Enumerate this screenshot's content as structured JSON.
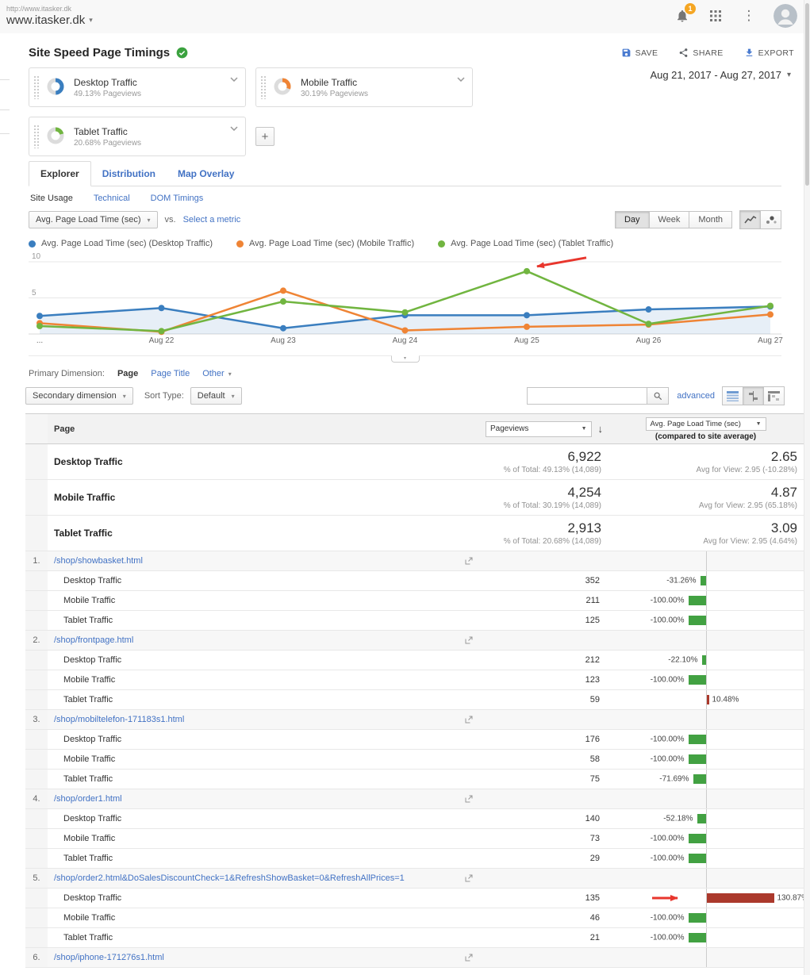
{
  "topbar": {
    "url": "http://www.itasker.dk",
    "site_name": "www.itasker.dk",
    "notification_count": "1"
  },
  "report": {
    "title": "Site Speed Page Timings",
    "save_label": "SAVE",
    "share_label": "SHARE",
    "export_label": "EXPORT",
    "date_range": "Aug 21, 2017 - Aug 27, 2017"
  },
  "segments": [
    {
      "name": "Desktop Traffic",
      "detail": "49.13% Pageviews",
      "pct": 49.13,
      "color": "#3a7ebf"
    },
    {
      "name": "Mobile Traffic",
      "detail": "30.19% Pageviews",
      "pct": 30.19,
      "color": "#ef8435"
    },
    {
      "name": "Tablet Traffic",
      "detail": "20.68% Pageviews",
      "pct": 20.68,
      "color": "#71b540"
    }
  ],
  "tabs": [
    {
      "label": "Explorer",
      "active": true
    },
    {
      "label": "Distribution",
      "active": false
    },
    {
      "label": "Map Overlay",
      "active": false
    }
  ],
  "subtabs": [
    {
      "label": "Site Usage",
      "active": true
    },
    {
      "label": "Technical",
      "active": false
    },
    {
      "label": "DOM Timings",
      "active": false
    }
  ],
  "metric_bar": {
    "metric_dropdown": "Avg. Page Load Time (sec)",
    "vs_label": "vs.",
    "select_metric": "Select a metric",
    "granularity": [
      {
        "label": "Day",
        "active": true
      },
      {
        "label": "Week",
        "active": false
      },
      {
        "label": "Month",
        "active": false
      }
    ]
  },
  "legend": [
    {
      "label": "Avg. Page Load Time (sec) (Desktop Traffic)",
      "color": "#3a7ebf"
    },
    {
      "label": "Avg. Page Load Time (sec) (Mobile Traffic)",
      "color": "#ef8435"
    },
    {
      "label": "Avg. Page Load Time (sec) (Tablet Traffic)",
      "color": "#71b540"
    }
  ],
  "chart_data": {
    "type": "line",
    "x_labels": [
      "...",
      "Aug 22",
      "Aug 23",
      "Aug 24",
      "Aug 25",
      "Aug 26",
      "Aug 27"
    ],
    "y_ticks": [
      5,
      10
    ],
    "y_max": 10,
    "grid": true,
    "legend_position": "top",
    "series": [
      {
        "name": "Avg. Page Load Time (sec) (Desktop Traffic)",
        "color": "#3a7ebf",
        "area": true,
        "values": [
          2.5,
          3.6,
          0.8,
          2.6,
          2.6,
          3.4,
          3.8
        ]
      },
      {
        "name": "Avg. Page Load Time (sec) (Mobile Traffic)",
        "color": "#ef8435",
        "area": false,
        "values": [
          1.5,
          0.3,
          6.0,
          0.5,
          1.0,
          1.3,
          2.7
        ]
      },
      {
        "name": "Avg. Page Load Time (sec) (Tablet Traffic)",
        "color": "#71b540",
        "area": false,
        "values": [
          1.1,
          0.4,
          4.5,
          3.0,
          8.7,
          1.4,
          3.9
        ]
      }
    ],
    "annotation": {
      "type": "arrow",
      "series": 2,
      "point": 4,
      "color": "#e8362d"
    }
  },
  "dimension_bar": {
    "label": "Primary Dimension:",
    "options": [
      {
        "label": "Page",
        "active": true,
        "caret": false
      },
      {
        "label": "Page Title",
        "active": false,
        "caret": false
      },
      {
        "label": "Other",
        "active": false,
        "caret": true
      }
    ]
  },
  "toolbar": {
    "secondary_dimension": "Secondary dimension",
    "sort_type_label": "Sort Type:",
    "sort_type_value": "Default",
    "search_value": "",
    "advanced_label": "advanced"
  },
  "table": {
    "page_col": "Page",
    "pageviews_col": "Pageviews",
    "avg_col": "Avg. Page Load Time (sec)",
    "avg_col_sub": "(compared to site average)",
    "summary_rows": [
      {
        "name": "Desktop Traffic",
        "pageviews": "6,922",
        "pageviews_sub": "% of Total: 49.13% (14,089)",
        "avg": "2.65",
        "avg_sub": "Avg for View: 2.95 (-10.28%)"
      },
      {
        "name": "Mobile Traffic",
        "pageviews": "4,254",
        "pageviews_sub": "% of Total: 30.19% (14,089)",
        "avg": "4.87",
        "avg_sub": "Avg for View: 2.95 (65.18%)"
      },
      {
        "name": "Tablet Traffic",
        "pageviews": "2,913",
        "pageviews_sub": "% of Total: 20.68% (14,089)",
        "avg": "3.09",
        "avg_sub": "Avg for View: 2.95 (4.64%)"
      }
    ],
    "row_groups": [
      {
        "index": "1.",
        "url": "/shop/showbasket.html",
        "segments": [
          {
            "name": "Desktop Traffic",
            "pageviews": "352",
            "delta_label": "-31.26%",
            "delta": -31.26,
            "arrow": false
          },
          {
            "name": "Mobile Traffic",
            "pageviews": "211",
            "delta_label": "-100.00%",
            "delta": -100,
            "arrow": false
          },
          {
            "name": "Tablet Traffic",
            "pageviews": "125",
            "delta_label": "-100.00%",
            "delta": -100,
            "arrow": false
          }
        ]
      },
      {
        "index": "2.",
        "url": "/shop/frontpage.html",
        "segments": [
          {
            "name": "Desktop Traffic",
            "pageviews": "212",
            "delta_label": "-22.10%",
            "delta": -22.1,
            "arrow": false
          },
          {
            "name": "Mobile Traffic",
            "pageviews": "123",
            "delta_label": "-100.00%",
            "delta": -100,
            "arrow": false
          },
          {
            "name": "Tablet Traffic",
            "pageviews": "59",
            "delta_label": "10.48%",
            "delta": 10.48,
            "arrow": false
          }
        ]
      },
      {
        "index": "3.",
        "url": "/shop/mobiltelefon-171183s1.html",
        "segments": [
          {
            "name": "Desktop Traffic",
            "pageviews": "176",
            "delta_label": "-100.00%",
            "delta": -100,
            "arrow": false
          },
          {
            "name": "Mobile Traffic",
            "pageviews": "58",
            "delta_label": "-100.00%",
            "delta": -100,
            "arrow": false
          },
          {
            "name": "Tablet Traffic",
            "pageviews": "75",
            "delta_label": "-71.69%",
            "delta": -71.69,
            "arrow": false
          }
        ]
      },
      {
        "index": "4.",
        "url": "/shop/order1.html",
        "segments": [
          {
            "name": "Desktop Traffic",
            "pageviews": "140",
            "delta_label": "-52.18%",
            "delta": -52.18,
            "arrow": false
          },
          {
            "name": "Mobile Traffic",
            "pageviews": "73",
            "delta_label": "-100.00%",
            "delta": -100,
            "arrow": false
          },
          {
            "name": "Tablet Traffic",
            "pageviews": "29",
            "delta_label": "-100.00%",
            "delta": -100,
            "arrow": false
          }
        ]
      },
      {
        "index": "5.",
        "url": "/shop/order2.html&DoSalesDiscountCheck=1&RefreshShowBasket=0&RefreshAllPrices=1",
        "segments": [
          {
            "name": "Desktop Traffic",
            "pageviews": "135",
            "delta_label": "130.87%",
            "delta": 130.87,
            "arrow": true
          },
          {
            "name": "Mobile Traffic",
            "pageviews": "46",
            "delta_label": "-100.00%",
            "delta": -100,
            "arrow": false
          },
          {
            "name": "Tablet Traffic",
            "pageviews": "21",
            "delta_label": "-100.00%",
            "delta": -100,
            "arrow": false
          }
        ]
      },
      {
        "index": "6.",
        "url": "/shop/iphone-171276s1.html",
        "segments": []
      }
    ]
  },
  "colors": {
    "positive_bar": "#ab392c",
    "negative_bar": "#42a142",
    "link": "#4272c4",
    "annotation": "#e8362d"
  }
}
